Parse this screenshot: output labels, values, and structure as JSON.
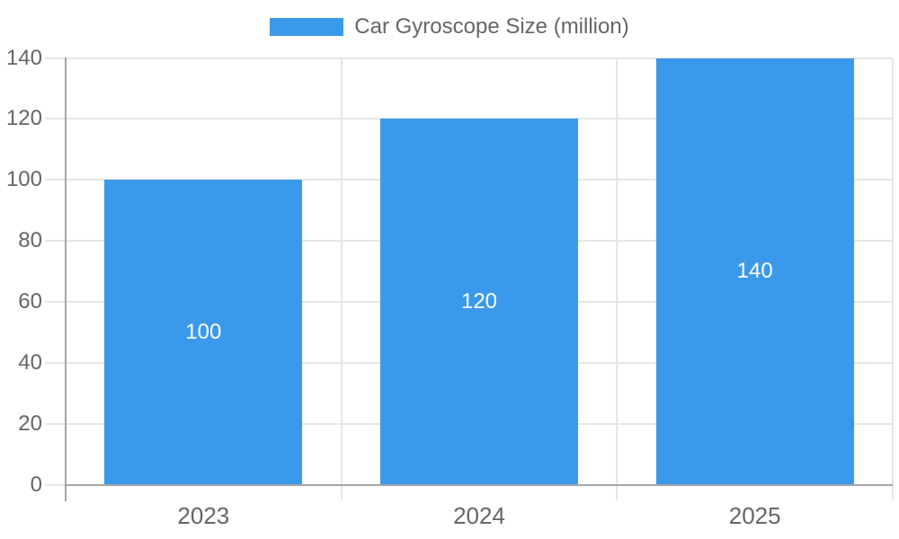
{
  "legend": {
    "label": "Car Gyroscope Size (million)"
  },
  "chart_data": {
    "type": "bar",
    "title": "Car Gyroscope Size (million)",
    "categories": [
      "2023",
      "2024",
      "2025"
    ],
    "series": [
      {
        "name": "Car Gyroscope Size (million)",
        "values": [
          100,
          120,
          140
        ]
      }
    ],
    "bar_labels": [
      "100",
      "120",
      "140"
    ],
    "xlabel": "",
    "ylabel": "",
    "ylim": [
      0,
      140
    ],
    "yticks": [
      0,
      20,
      40,
      60,
      80,
      100,
      120,
      140
    ],
    "grid": true,
    "legend_position": "top-center",
    "colors": {
      "bar": "#3b99ec",
      "axis_text": "#666666",
      "bar_label_text": "#ffffff",
      "gridline": "#e6e6e6",
      "axis_line": "#a6a6a6",
      "background": "#ffffff"
    }
  }
}
